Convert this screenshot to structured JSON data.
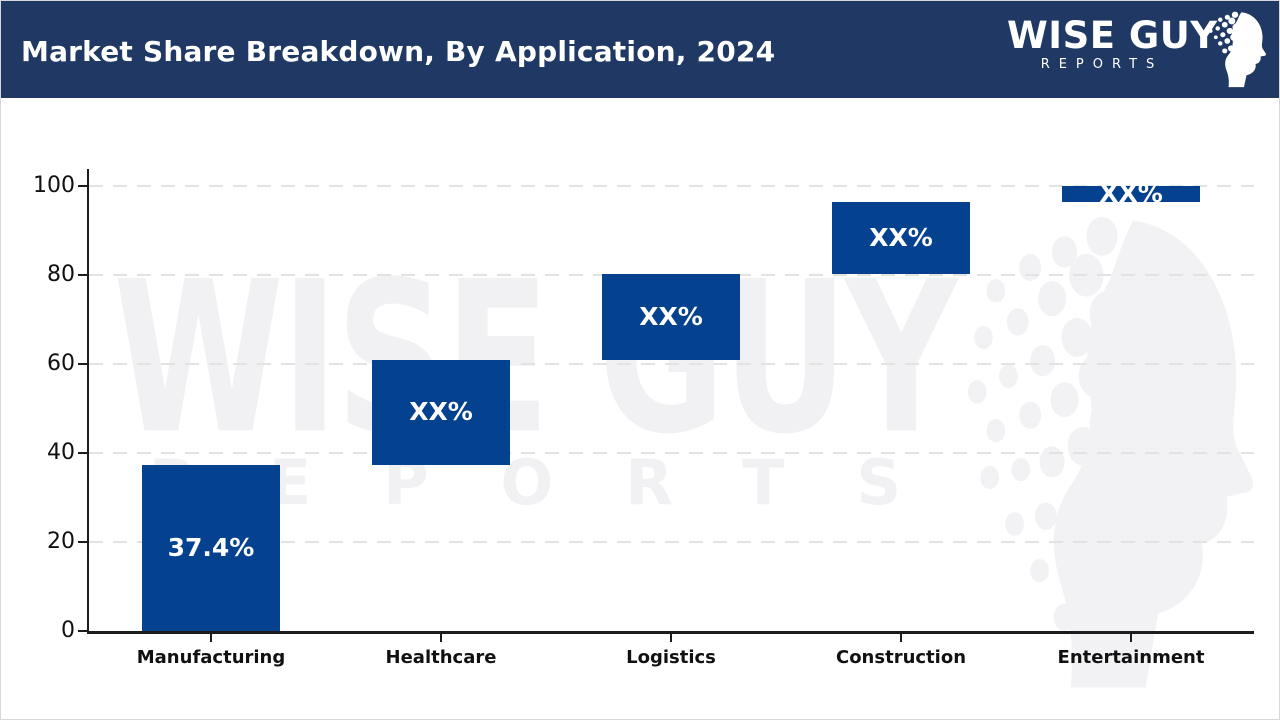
{
  "header": {
    "title": "Market Share Breakdown, By Application, 2024",
    "logo": {
      "line1": "WISE GUY",
      "line2": "REPORTS"
    }
  },
  "watermark": {
    "line1": "WISE GUY",
    "line2": "REPORTS"
  },
  "colors": {
    "header_bg": "#1f3864",
    "bar": "#04418f",
    "bar_label": "#ffffff",
    "axis": "#1c1c1c",
    "gridline": "#e3e3e4",
    "watermark": "#f1f1f4"
  },
  "chart_data": {
    "type": "bar",
    "subtype": "waterfall",
    "title": "Market Share Breakdown, By Application, 2024",
    "xlabel": "",
    "ylabel": "",
    "ylim": [
      0,
      105
    ],
    "yticks": [
      0,
      20,
      40,
      60,
      80,
      100
    ],
    "grid": "horizontal-dashed",
    "legend": "none",
    "categories": [
      "Manufacturing",
      "Healthcare",
      "Logistics",
      "Construction",
      "Entertainment"
    ],
    "segments": [
      {
        "category": "Manufacturing",
        "start": 0,
        "end": 37.4,
        "label": "37.4%"
      },
      {
        "category": "Healthcare",
        "start": 37.4,
        "end": 61.0,
        "label": "XX%"
      },
      {
        "category": "Logistics",
        "start": 61.0,
        "end": 80.3,
        "label": "XX%"
      },
      {
        "category": "Construction",
        "start": 80.3,
        "end": 96.3,
        "label": "XX%"
      },
      {
        "category": "Entertainment",
        "start": 96.3,
        "end": 100.0,
        "label": "XX%"
      }
    ]
  }
}
